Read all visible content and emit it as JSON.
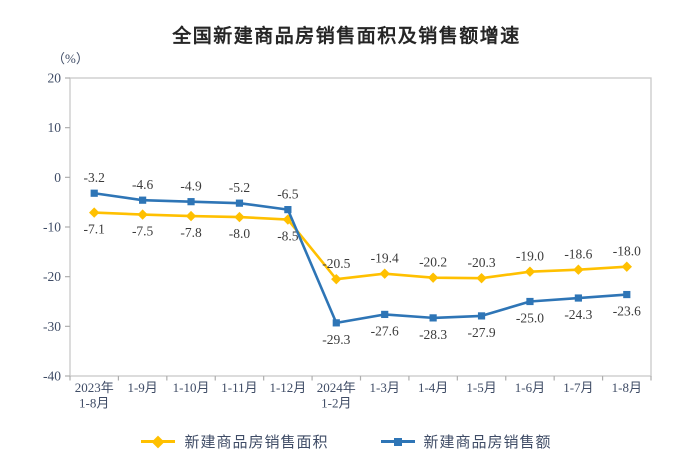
{
  "chart_data": {
    "type": "line",
    "title": "全国新建商品房销售面积及销售额增速",
    "unit_label": "（%）",
    "categories": [
      "2023年\n1-8月",
      "1-9月",
      "1-10月",
      "1-11月",
      "1-12月",
      "2024年\n1-2月",
      "1-3月",
      "1-4月",
      "1-5月",
      "1-6月",
      "1-7月",
      "1-8月"
    ],
    "series": [
      {
        "name": "新建商品房销售面积",
        "color": "#FFC000",
        "marker": "diamond",
        "values": [
          -7.1,
          -7.5,
          -7.8,
          -8.0,
          -8.5,
          -20.5,
          -19.4,
          -20.2,
          -20.3,
          -19.0,
          -18.6,
          -18.0
        ]
      },
      {
        "name": "新建商品房销售额",
        "color": "#2E75B6",
        "marker": "square",
        "values": [
          -3.2,
          -4.6,
          -4.9,
          -5.2,
          -6.5,
          -29.3,
          -27.6,
          -28.3,
          -27.9,
          -25.0,
          -24.3,
          -23.6
        ]
      }
    ],
    "ylim": [
      -40,
      20
    ],
    "yticks": [
      20,
      10,
      0,
      -10,
      -20,
      -30,
      -40
    ],
    "grid": false,
    "plot_border": true,
    "legend_position": "bottom",
    "data_labels": true,
    "colors": {
      "axis_text": "#3f4c66",
      "data_label_text": "#3c3c3c",
      "title_text": "#262626",
      "plot_border": "#c9c9c9",
      "tick_mark": "#aeaeae"
    }
  }
}
